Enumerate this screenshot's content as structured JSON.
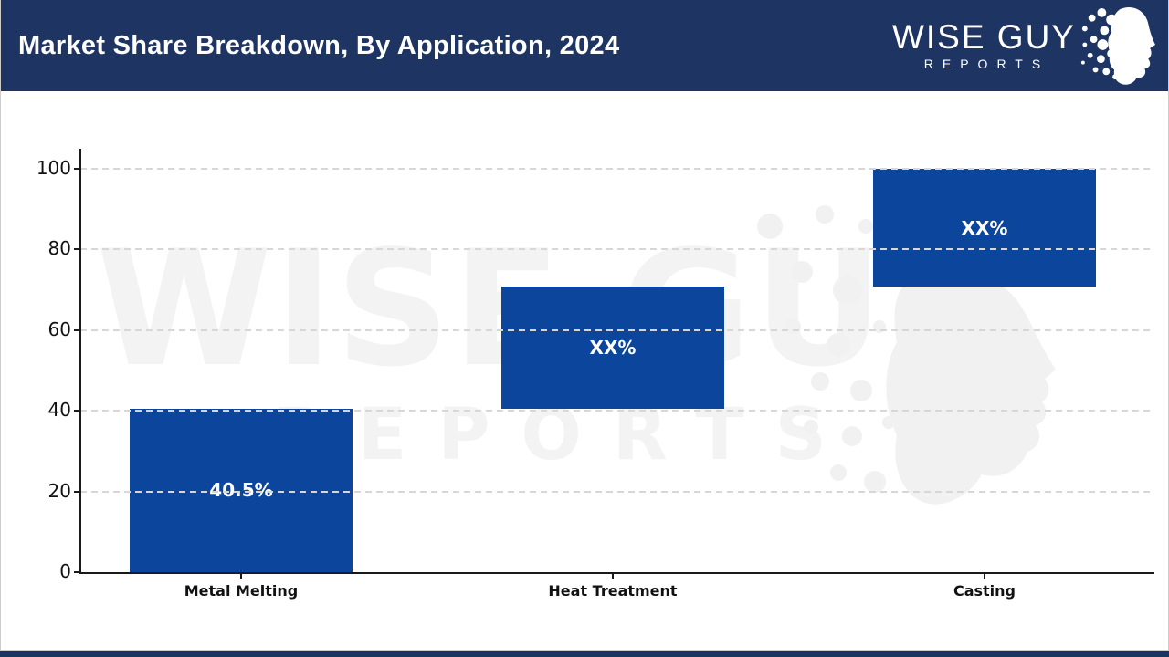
{
  "header": {
    "title": "Market Share Breakdown, By Application, 2024",
    "logo": {
      "brand_line1": "WISE GUY",
      "brand_line2": "REPORTS",
      "head_icon": "dotted-head-profile-icon"
    }
  },
  "watermark": {
    "line1": "WISE GUY",
    "line2": "REPORTS",
    "head_icon": "dotted-head-profile-watermark"
  },
  "colors": {
    "header_bg": "#1e3563",
    "footer_bg": "#1e3563",
    "bar": "#0b459c",
    "bar_label_text": "#ffffff",
    "axis": "#1a1a1a",
    "tick_text": "#111111",
    "gridline": "#d7d7d7",
    "watermark": "#f3f3f3",
    "page_bg": "#ffffff"
  },
  "chart_data": {
    "type": "bar",
    "subtype": "waterfall-floating-bars",
    "title": "Market Share Breakdown, By Application, 2024",
    "categories": [
      "Metal Melting",
      "Heat Treatment",
      "Casting"
    ],
    "series": [
      {
        "name": "Market Share",
        "segments": [
          {
            "category": "Metal Melting",
            "start": 0,
            "end": 40.5,
            "label": "40.5%"
          },
          {
            "category": "Heat Treatment",
            "start": 40.5,
            "end": 70.8,
            "label": "XX%"
          },
          {
            "category": "Casting",
            "start": 70.8,
            "end": 100,
            "label": "XX%"
          }
        ]
      }
    ],
    "xlabel": "",
    "ylabel": "",
    "ylim": [
      0,
      100
    ],
    "yticks": [
      0,
      20,
      40,
      60,
      80,
      100
    ],
    "grid": "horizontal-dashed",
    "gridline_above_bars": true,
    "legend": "none"
  }
}
